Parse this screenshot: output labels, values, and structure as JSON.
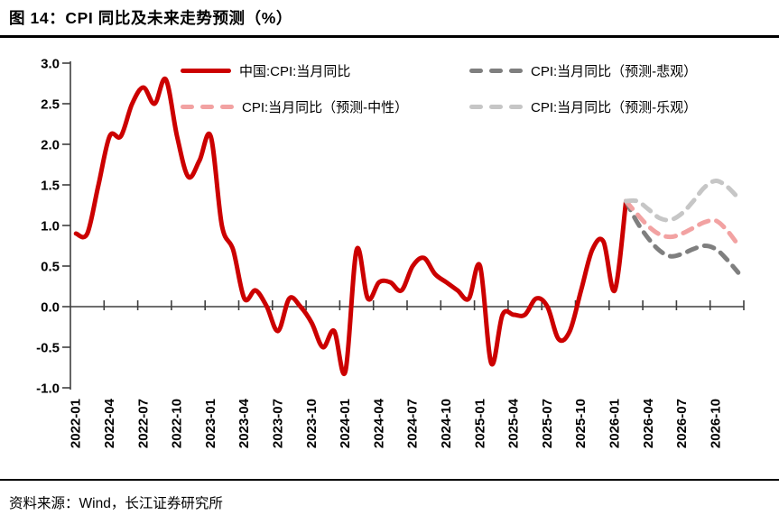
{
  "title": "图 14：CPI 同比及未来走势预测（%）",
  "source": "资料来源：Wind，长江证券研究所",
  "colors": {
    "actual": "#cc0000",
    "pessimistic": "#7f7f7f",
    "neutral": "#f2a2a2",
    "optimistic": "#c6c6c6",
    "axis": "#3f3f3f",
    "text": "#000000"
  },
  "legend": [
    {
      "key": "actual",
      "label": "中国:CPI:当月同比"
    },
    {
      "key": "pessimistic",
      "label": "CPI:当月同比（预测-悲观）"
    },
    {
      "key": "neutral",
      "label": "CPI:当月同比（预测-中性）"
    },
    {
      "key": "optimistic",
      "label": "CPI:当月同比（预测-乐观）"
    }
  ],
  "chart_data": {
    "type": "line",
    "title": "CPI 同比及未来走势预测（%）",
    "xlabel": "",
    "ylabel": "",
    "ylim": [
      -1.0,
      3.0
    ],
    "grid": false,
    "legend_position": "top",
    "y_tick_labels": [
      "3.0",
      "2.5",
      "2.0",
      "1.5",
      "1.0",
      "0.5",
      "0.0",
      "-0.5",
      "-1.0"
    ],
    "x_tick_labels": [
      "2022-01",
      "2022-04",
      "2022-07",
      "2022-10",
      "2023-01",
      "2023-04",
      "2023-07",
      "2023-10",
      "2024-01",
      "2024-04",
      "2024-07",
      "2024-10",
      "2025-01",
      "2025-04",
      "2025-07",
      "2025-10",
      "2026-01",
      "2026-04",
      "2026-07",
      "2026-10"
    ],
    "categories": [
      "2022-01",
      "2022-02",
      "2022-03",
      "2022-04",
      "2022-05",
      "2022-06",
      "2022-07",
      "2022-08",
      "2022-09",
      "2022-10",
      "2022-11",
      "2022-12",
      "2023-01",
      "2023-02",
      "2023-03",
      "2023-04",
      "2023-05",
      "2023-06",
      "2023-07",
      "2023-08",
      "2023-09",
      "2023-10",
      "2023-11",
      "2023-12",
      "2024-01",
      "2024-02",
      "2024-03",
      "2024-04",
      "2024-05",
      "2024-06",
      "2024-07",
      "2024-08",
      "2024-09",
      "2024-10",
      "2024-11",
      "2024-12",
      "2025-01",
      "2025-02",
      "2025-03",
      "2025-04",
      "2025-05",
      "2025-06",
      "2025-07",
      "2025-08",
      "2025-09",
      "2025-10",
      "2025-11",
      "2025-12",
      "2026-01",
      "2026-02",
      "2026-03",
      "2026-04",
      "2026-05",
      "2026-06",
      "2026-07",
      "2026-08",
      "2026-09",
      "2026-10",
      "2026-11",
      "2026-12"
    ],
    "series": [
      {
        "name": "中国:CPI:当月同比",
        "color_key": "actual",
        "style": "solid",
        "start_index": 0,
        "values": [
          0.9,
          0.9,
          1.5,
          2.1,
          2.1,
          2.5,
          2.7,
          2.5,
          2.8,
          2.1,
          1.6,
          1.8,
          2.1,
          1.0,
          0.7,
          0.1,
          0.2,
          0.0,
          -0.3,
          0.1,
          0.0,
          -0.2,
          -0.5,
          -0.3,
          -0.8,
          0.7,
          0.1,
          0.3,
          0.3,
          0.2,
          0.5,
          0.6,
          0.4,
          0.3,
          0.2,
          0.1,
          0.5,
          -0.7,
          -0.1,
          -0.1,
          -0.1,
          0.1,
          0.0,
          -0.4,
          -0.3,
          0.2,
          0.7,
          0.8,
          0.2,
          1.3
        ]
      },
      {
        "name": "CPI:当月同比（预测-悲观）",
        "color_key": "pessimistic",
        "style": "dashed",
        "start_index": 49,
        "values": [
          1.3,
          1.04,
          0.84,
          0.69,
          0.62,
          0.65,
          0.71,
          0.75,
          0.71,
          0.58,
          0.42
        ]
      },
      {
        "name": "CPI:当月同比（预测-中性）",
        "color_key": "neutral",
        "style": "dashed",
        "start_index": 49,
        "values": [
          1.3,
          1.14,
          0.99,
          0.89,
          0.86,
          0.9,
          0.97,
          1.04,
          1.06,
          0.94,
          0.76
        ]
      },
      {
        "name": "CPI:当月同比（预测-乐观）",
        "color_key": "optimistic",
        "style": "dashed",
        "start_index": 49,
        "values": [
          1.3,
          1.3,
          1.2,
          1.09,
          1.07,
          1.15,
          1.3,
          1.47,
          1.55,
          1.48,
          1.34
        ]
      }
    ]
  }
}
